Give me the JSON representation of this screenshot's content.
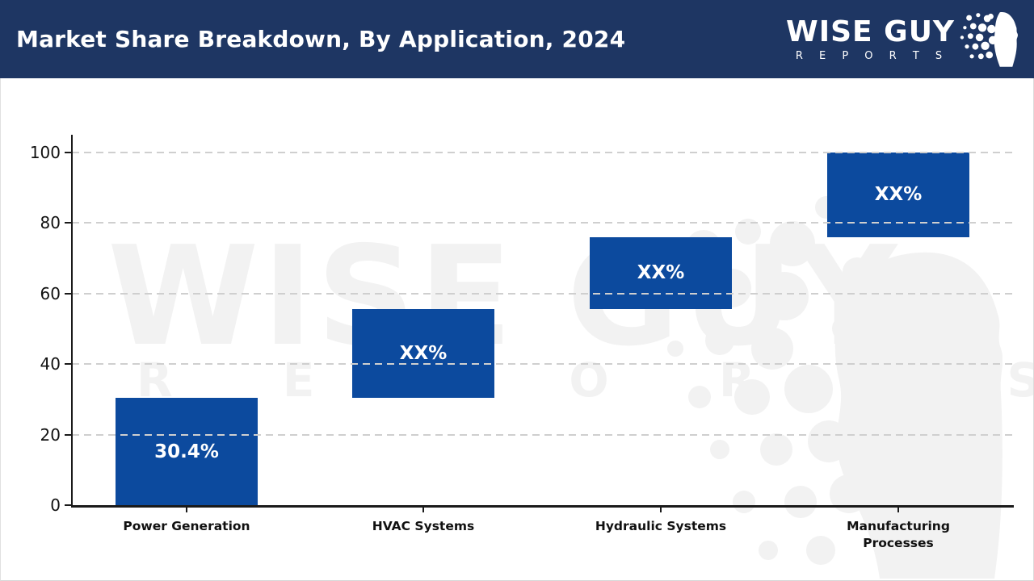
{
  "header": {
    "title": "Market Share Breakdown, By Application, 2024",
    "logo": {
      "name": "WISE GUY",
      "subtitle": "R E P O R T S",
      "face_icon": "dotted-head-profile"
    }
  },
  "watermark": {
    "line1": "WISE GUY",
    "line2": "R E P O R T S"
  },
  "chart_data": {
    "type": "bar",
    "subtype": "waterfall",
    "title": "Market Share Breakdown, By Application, 2024",
    "xlabel": "",
    "ylabel": "",
    "ylim": [
      0,
      100
    ],
    "yticks": [
      0,
      20,
      40,
      60,
      80,
      100
    ],
    "grid": "horizontal-dashed",
    "legend": "none",
    "bar_color": "#0c4a9e",
    "categories": [
      "Power Generation",
      "HVAC Systems",
      "Hydraulic Systems",
      "Manufacturing Processes"
    ],
    "segments": [
      {
        "category": "Power Generation",
        "start": 0,
        "end": 30.4,
        "label": "30.4%"
      },
      {
        "category": "HVAC Systems",
        "start": 30.4,
        "end": 55.5,
        "label": "XX%"
      },
      {
        "category": "Hydraulic Systems",
        "start": 55.5,
        "end": 76.0,
        "label": "XX%"
      },
      {
        "category": "Manufacturing Processes",
        "start": 76.0,
        "end": 100.0,
        "label": "XX%"
      }
    ]
  }
}
